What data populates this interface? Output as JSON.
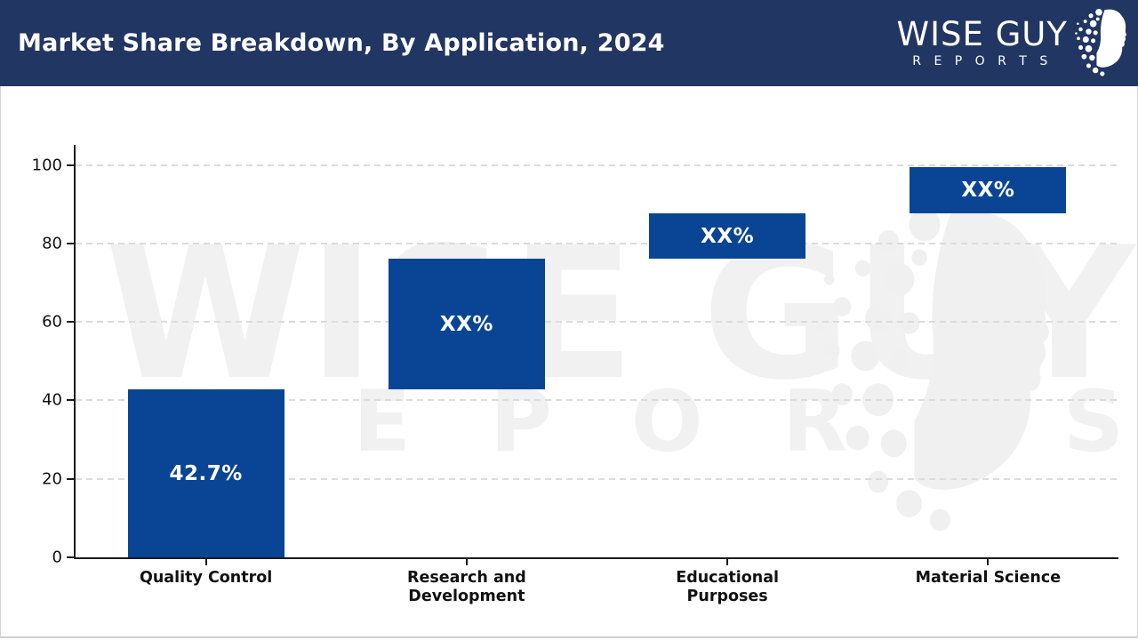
{
  "header": {
    "title": "Market Share Breakdown, By Application, 2024",
    "logo": {
      "brand": "WISE GUY",
      "sub": "R E P O R T S"
    }
  },
  "watermark": {
    "line1": "WISE GUY",
    "line2": "R E P O R T S"
  },
  "chart_data": {
    "type": "bar",
    "variant": "waterfall",
    "title": "Market Share Breakdown, By Application, 2024",
    "categories": [
      "Quality Control",
      "Research and\nDevelopment",
      "Educational\nPurposes",
      "Material Science"
    ],
    "bars": [
      {
        "category": "Quality Control",
        "start": 0,
        "end": 42.7,
        "label": "42.7%"
      },
      {
        "category": "Research and Development",
        "start": 42.7,
        "end": 76.0,
        "label": "XX%"
      },
      {
        "category": "Educational Purposes",
        "start": 76.0,
        "end": 87.6,
        "label": "XX%"
      },
      {
        "category": "Material Science",
        "start": 87.6,
        "end": 99.4,
        "label": "XX%"
      }
    ],
    "y_ticks": [
      "0",
      "20",
      "40",
      "60",
      "80",
      "100"
    ],
    "ylim": [
      0,
      105
    ],
    "xlabel": "",
    "ylabel": "",
    "grid": "horizontal-dashed",
    "legend": "none",
    "bar_color": "#0A4595",
    "bar_label_color": "#FFFFFF"
  },
  "colors": {
    "header_bg": "#223663",
    "bar": "#0A4595",
    "grid": "#DCDCDC",
    "axis": "#1A1A1A",
    "watermark": "#F1F1F2",
    "frame_border": "#D5D5D5"
  }
}
